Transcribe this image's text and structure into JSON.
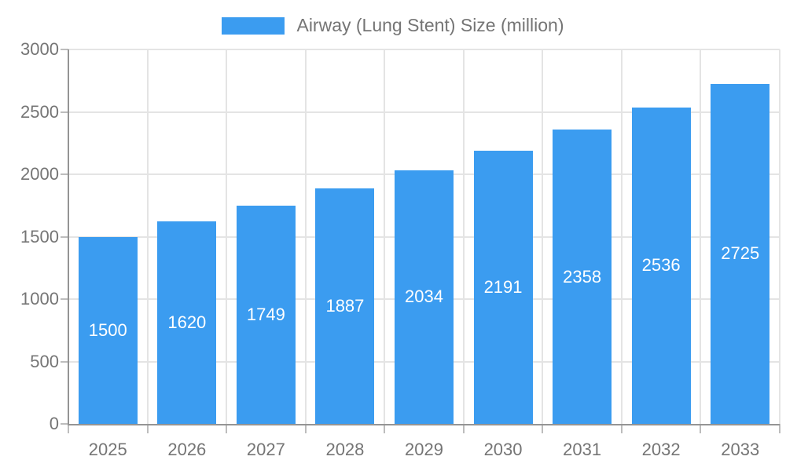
{
  "legend": {
    "label": "Airway (Lung Stent) Size (million)"
  },
  "chart_data": {
    "type": "bar",
    "title": "Airway (Lung Stent) Size (million)",
    "categories": [
      "2025",
      "2026",
      "2027",
      "2028",
      "2029",
      "2030",
      "2031",
      "2032",
      "2033"
    ],
    "values": [
      1500,
      1620,
      1749,
      1887,
      2034,
      2191,
      2358,
      2536,
      2725
    ],
    "xlabel": "",
    "ylabel": "",
    "ylim": [
      0,
      3000
    ],
    "yticks": [
      0,
      500,
      1000,
      1500,
      2000,
      2500,
      3000
    ],
    "legend_position": "top",
    "grid": true,
    "colors": {
      "bar": "#3b9cf0",
      "bar_label": "#ffffff",
      "axis_text": "#757575",
      "gridline": "#e4e4e4",
      "axis_line": "#949494",
      "tick": "#bdbdbd",
      "background": "#ffffff"
    }
  }
}
